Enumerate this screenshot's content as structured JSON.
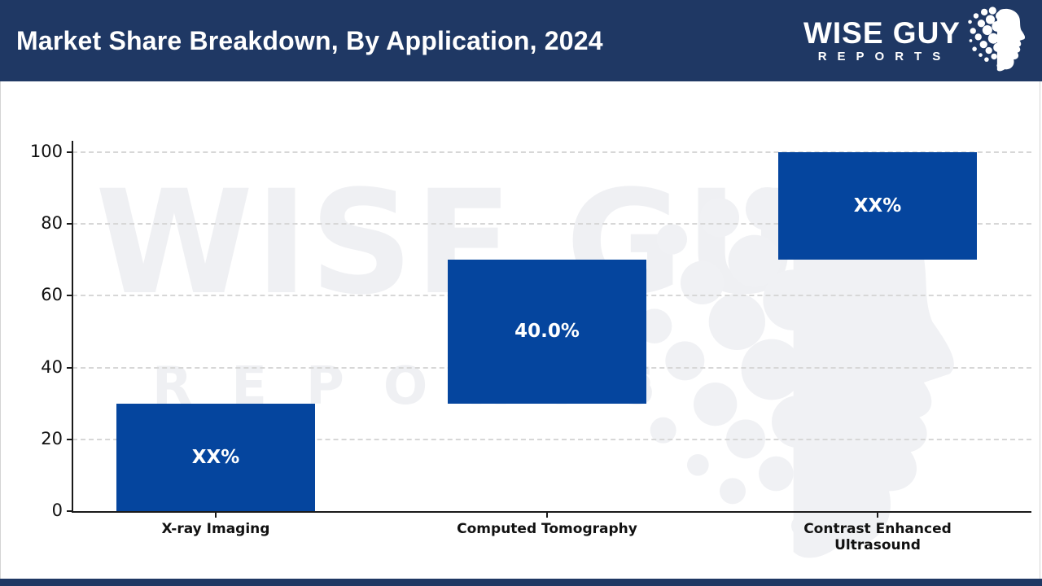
{
  "header": {
    "title": "Market Share Breakdown, By Application, 2024",
    "logo": {
      "line1": "WISE GUY",
      "line2": "REPORTS"
    }
  },
  "watermark": {
    "line1": "WISE GUY",
    "line2": "REPORTS"
  },
  "colors": {
    "header_bg": "#1f3864",
    "footer_bg": "#1f3864",
    "bar": "#05459e",
    "bar_label": "#ffffff",
    "grid": "#d7d7d7",
    "axis": "#1a1a1a",
    "watermark": "#eff0f3",
    "title_text": "#ffffff"
  },
  "chart_data": {
    "type": "bar",
    "subtype": "floating-range-bars",
    "title": "Market Share Breakdown, By Application, 2024",
    "xlabel": "",
    "ylabel": "",
    "categories": [
      "X-ray Imaging",
      "Computed Tomography",
      "Contrast Enhanced Ultrasound"
    ],
    "bars": [
      {
        "category": "X-ray Imaging",
        "start": 0,
        "end": 30,
        "label": "XX%"
      },
      {
        "category": "Computed Tomography",
        "start": 30,
        "end": 70,
        "label": "40.0%"
      },
      {
        "category": "Contrast Enhanced Ultrasound",
        "start": 70,
        "end": 100,
        "label": "XX%"
      }
    ],
    "ylim": [
      0,
      100
    ],
    "yticks": [
      0,
      20,
      40,
      60,
      80,
      100
    ],
    "grid": "horizontal-dashed",
    "legend": "none"
  }
}
